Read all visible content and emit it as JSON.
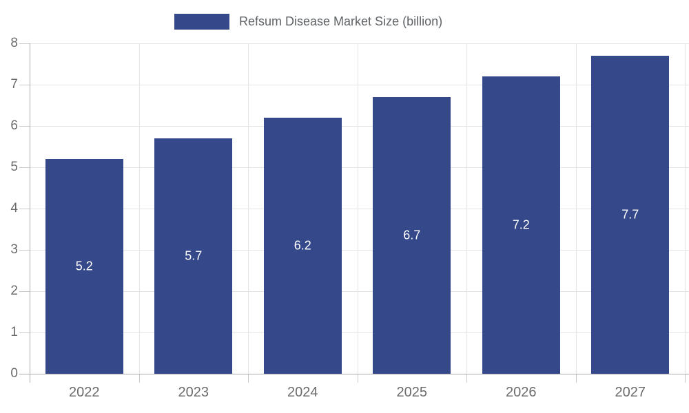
{
  "legend": {
    "label": "Refsum Disease Market Size (billion)",
    "swatch_color": "#35488a"
  },
  "chart_data": {
    "type": "bar",
    "title": "",
    "xlabel": "",
    "ylabel": "",
    "categories": [
      "2022",
      "2023",
      "2024",
      "2025",
      "2026",
      "2027"
    ],
    "series": [
      {
        "name": "Refsum Disease Market Size (billion)",
        "values": [
          5.2,
          5.7,
          6.2,
          6.7,
          7.2,
          7.7
        ]
      }
    ],
    "bar_labels": [
      "5.2",
      "5.7",
      "6.2",
      "6.7",
      "7.2",
      "7.7"
    ],
    "ylim": [
      0,
      8
    ],
    "yticks": [
      0,
      1,
      2,
      3,
      4,
      5,
      6,
      7,
      8
    ],
    "grid": true,
    "legend_position": "top-center"
  },
  "colors": {
    "bar": "#35488a",
    "bar_label": "#ffffff",
    "gridline": "#e4e4e8",
    "axis_line": "#aaaaae",
    "tick_mark": "#c9c9cd",
    "axis_label": "#6b6b6e",
    "legend_text": "#5f6366",
    "background": "#ffffff"
  }
}
